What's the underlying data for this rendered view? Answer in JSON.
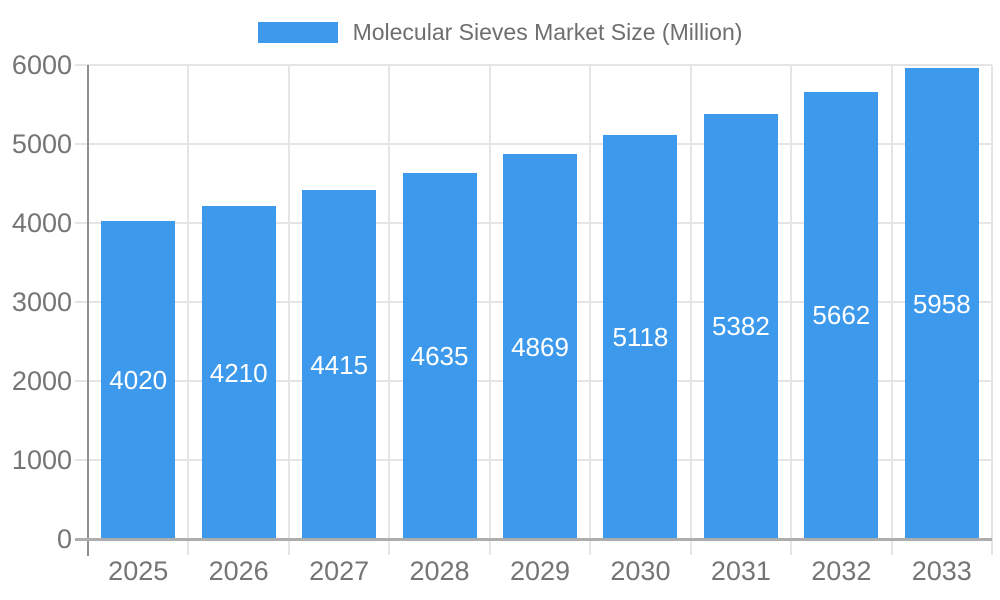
{
  "legend": {
    "title": "Molecular Sieves Market Size (Million)"
  },
  "chart_data": {
    "type": "bar",
    "title": "Molecular Sieves Market Size (Million)",
    "categories": [
      "2025",
      "2026",
      "2027",
      "2028",
      "2029",
      "2030",
      "2031",
      "2032",
      "2033"
    ],
    "values": [
      4020,
      4210,
      4415,
      4635,
      4869,
      5118,
      5382,
      5662,
      5958
    ],
    "xlabel": "",
    "ylabel": "",
    "ylim": [
      0,
      6000
    ],
    "yticks": [
      0,
      1000,
      2000,
      3000,
      4000,
      5000,
      6000
    ],
    "grid": true,
    "legend_position": "top-center",
    "bar_labels_inside": true,
    "colors": {
      "bar": "#3C99EC",
      "bar_label": "#FFFFFF",
      "grid": "#E5E5E5",
      "x_axis_line": "#ADADAD",
      "y_axis_line": "#8F8F8F",
      "axis_text": "#757575",
      "legend_text": "#6E6E6E",
      "background": "#FFFFFF"
    }
  }
}
